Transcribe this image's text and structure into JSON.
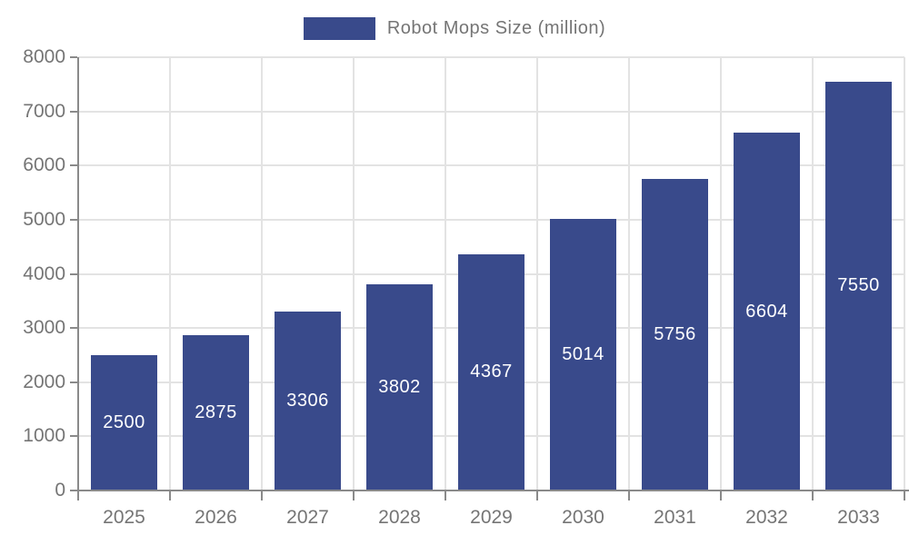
{
  "chart_data": {
    "type": "bar",
    "title": "Robot Mops Size (million)",
    "categories": [
      "2025",
      "2026",
      "2027",
      "2028",
      "2029",
      "2030",
      "2031",
      "2032",
      "2033"
    ],
    "values": [
      2500,
      2875,
      3306,
      3802,
      4367,
      5014,
      5756,
      6604,
      7550
    ],
    "xlabel": "",
    "ylabel": "",
    "ylim": [
      0,
      8000
    ],
    "yticks": [
      0,
      1000,
      2000,
      3000,
      4000,
      5000,
      6000,
      7000,
      8000
    ],
    "grid": true,
    "legend_position": "top",
    "value_labels_shown": true,
    "colors": {
      "bar": "#394A8B",
      "grid": "#E3E3E3",
      "axis": "#8A8A8A",
      "tick_text": "#757575",
      "value_label": "#FFFFFF",
      "background": "#FFFFFF"
    }
  }
}
